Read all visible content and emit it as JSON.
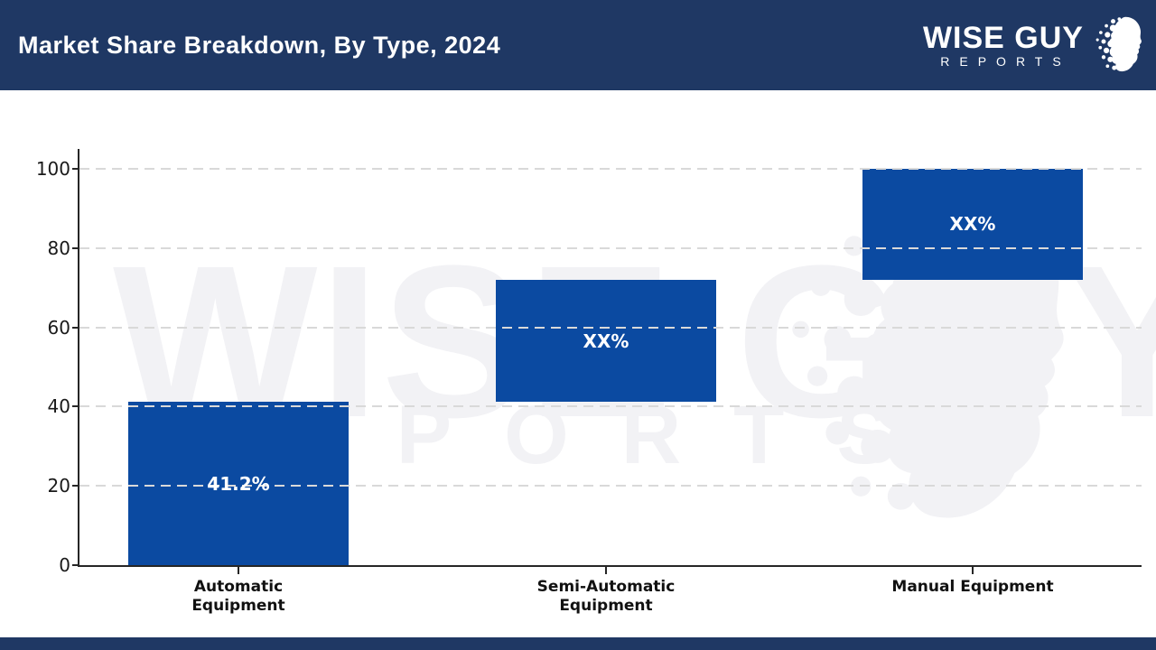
{
  "header": {
    "title": "Market Share Breakdown, By Type, 2024",
    "bg_color": "#1f3864",
    "logo": {
      "line1": "WISE GUY",
      "line2": "REPORTS"
    }
  },
  "watermark": {
    "line1": "WISE GUY",
    "line2": "REPORTS"
  },
  "footer": {
    "bg_color": "#1f3864"
  },
  "chart_data": {
    "type": "bar",
    "variant": "waterfall",
    "title": "Market Share Breakdown, By Type, 2024",
    "categories": [
      "Automatic Equipment",
      "Semi-Automatic Equipment",
      "Manual Equipment"
    ],
    "category_label_lines": [
      [
        "Automatic",
        "Equipment"
      ],
      [
        "Semi-Automatic",
        "Equipment"
      ],
      [
        "Manual Equipment"
      ]
    ],
    "segments": [
      {
        "category": "Automatic Equipment",
        "start": 0,
        "end": 41.2,
        "label": "41.2%"
      },
      {
        "category": "Semi-Automatic Equipment",
        "start": 41.2,
        "end": 72,
        "label": "XX%"
      },
      {
        "category": "Manual Equipment",
        "start": 72,
        "end": 100,
        "label": "XX%"
      }
    ],
    "xlabel": "",
    "ylabel": "",
    "ylim": [
      0,
      100
    ],
    "yticks": [
      0,
      20,
      40,
      60,
      80,
      100
    ],
    "bar_color": "#0b4aa1",
    "bar_label_color": "#ffffff",
    "grid": {
      "horizontal": true,
      "style": "dashed",
      "color": "#d9d9d9"
    },
    "legend": "none"
  }
}
